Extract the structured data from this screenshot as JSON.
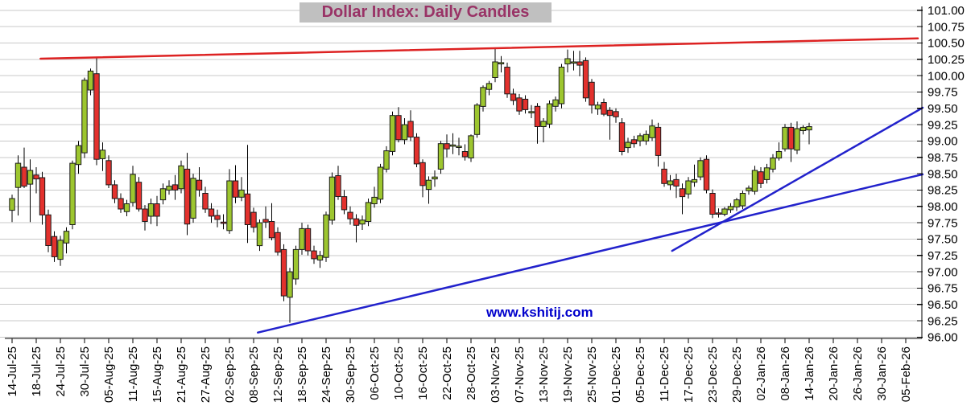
{
  "watermark": "www.kshitij.com",
  "colors": {
    "up": "#9dc62f",
    "down": "#e3312d",
    "body_border": "#1a1a1a",
    "wick": "#000000",
    "grid": "#c8c8c8",
    "axis": "#000000",
    "label": "#000000",
    "title_fg": "#993366",
    "title_bg": "#c0c0c0",
    "watermark_fg": "#0000cc",
    "resistance_line": "#dd2222",
    "support_line": "#2222cc"
  },
  "chart_data": {
    "type": "candlestick",
    "title": "Dollar Index: Daily Candles",
    "ylim": [
      96.0,
      101.0
    ],
    "y_tick_step": 0.25,
    "grid": true,
    "y_axis_side": "right",
    "y_ticks": [
      101.0,
      100.75,
      100.5,
      100.25,
      100.0,
      99.75,
      99.5,
      99.25,
      99.0,
      98.75,
      98.5,
      98.25,
      98.0,
      97.75,
      97.5,
      97.25,
      97.0,
      96.75,
      96.5,
      96.25,
      96.0
    ],
    "x_ticks_every_n_candles": 4,
    "x_tick_labels": [
      "14-Jul-25",
      "18-Jul-25",
      "24-Jul-25",
      "30-Jul-25",
      "05-Aug-25",
      "11-Aug-25",
      "15-Aug-25",
      "21-Aug-25",
      "27-Aug-25",
      "02-Sep-25",
      "08-Sep-25",
      "12-Sep-25",
      "18-Sep-25",
      "24-Sep-25",
      "30-Sep-25",
      "06-Oct-25",
      "10-Oct-25",
      "16-Oct-25",
      "22-Oct-25",
      "28-Oct-25",
      "03-Nov-25",
      "07-Nov-25",
      "13-Nov-25",
      "19-Nov-25",
      "25-Nov-25",
      "01-Dec-25",
      "05-Dec-25",
      "11-Dec-25",
      "17-Dec-25",
      "23-Dec-25",
      "29-Dec-25",
      "02-Jan-26",
      "08-Jan-26",
      "14-Jan-26",
      "20-Jan-26",
      "26-Jan-26",
      "30-Jan-26",
      "05-Feb-26"
    ],
    "candle_fields": [
      "date",
      "open",
      "high",
      "low",
      "close"
    ],
    "candles": [
      [
        "14-Jul-25",
        97.94,
        98.18,
        97.76,
        98.12
      ],
      [
        "15-Jul-25",
        98.29,
        98.78,
        97.86,
        98.66
      ],
      [
        "16-Jul-25",
        98.6,
        98.9,
        98.28,
        98.31
      ],
      [
        "17-Jul-25",
        98.34,
        98.72,
        97.76,
        98.55
      ],
      [
        "18-Jul-25",
        98.48,
        98.6,
        98.2,
        98.42
      ],
      [
        "21-Jul-25",
        98.44,
        98.53,
        97.72,
        97.87
      ],
      [
        "22-Jul-25",
        97.87,
        97.95,
        97.3,
        97.4
      ],
      [
        "23-Jul-25",
        97.54,
        97.62,
        97.15,
        97.23
      ],
      [
        "24-Jul-25",
        97.19,
        97.55,
        97.09,
        97.48
      ],
      [
        "25-Jul-25",
        97.44,
        97.68,
        97.28,
        97.62
      ],
      [
        "28-Jul-25",
        97.72,
        98.7,
        97.65,
        98.66
      ],
      [
        "29-Jul-25",
        98.64,
        99.0,
        98.5,
        98.93
      ],
      [
        "30-Jul-25",
        98.82,
        99.97,
        98.74,
        99.93
      ],
      [
        "31-Jul-25",
        99.78,
        100.11,
        99.7,
        100.07
      ],
      [
        "01-Aug-25",
        100.03,
        100.27,
        98.63,
        98.72
      ],
      [
        "04-Aug-25",
        98.73,
        98.98,
        98.54,
        98.86
      ],
      [
        "05-Aug-25",
        98.7,
        98.78,
        98.28,
        98.33
      ],
      [
        "06-Aug-25",
        98.33,
        98.4,
        98.05,
        98.12
      ],
      [
        "07-Aug-25",
        98.12,
        98.2,
        97.9,
        97.96
      ],
      [
        "08-Aug-25",
        97.92,
        98.1,
        97.85,
        98.04
      ],
      [
        "11-Aug-25",
        98.06,
        98.62,
        98.0,
        98.49
      ],
      [
        "12-Aug-25",
        98.37,
        98.45,
        97.92,
        97.96
      ],
      [
        "13-Aug-25",
        97.96,
        98.02,
        97.63,
        97.77
      ],
      [
        "14-Aug-25",
        97.85,
        98.12,
        97.73,
        98.04
      ],
      [
        "15-Aug-25",
        98.04,
        98.16,
        97.7,
        97.85
      ],
      [
        "18-Aug-25",
        98.1,
        98.35,
        98.03,
        98.27
      ],
      [
        "19-Aug-25",
        98.25,
        98.4,
        98.18,
        98.31
      ],
      [
        "20-Aug-25",
        98.33,
        98.48,
        98.1,
        98.25
      ],
      [
        "21-Aug-25",
        98.27,
        98.7,
        98.2,
        98.62
      ],
      [
        "22-Aug-25",
        98.57,
        98.82,
        97.56,
        97.73
      ],
      [
        "25-Aug-25",
        97.82,
        98.5,
        97.75,
        98.43
      ],
      [
        "26-Aug-25",
        98.4,
        98.6,
        98.15,
        98.25
      ],
      [
        "27-Aug-25",
        98.2,
        98.3,
        97.9,
        97.96
      ],
      [
        "28-Aug-25",
        97.96,
        98.05,
        97.75,
        97.85
      ],
      [
        "29-Aug-25",
        97.86,
        97.95,
        97.68,
        97.8
      ],
      [
        "01-Sep-25",
        97.76,
        97.88,
        97.65,
        97.74
      ],
      [
        "02-Sep-25",
        97.63,
        98.57,
        97.58,
        98.39
      ],
      [
        "03-Sep-25",
        98.39,
        98.63,
        98.05,
        98.14
      ],
      [
        "04-Sep-25",
        98.14,
        98.45,
        98.08,
        98.25
      ],
      [
        "05-Sep-25",
        98.19,
        98.94,
        97.44,
        97.72
      ],
      [
        "08-Sep-25",
        97.91,
        97.98,
        97.6,
        97.68
      ],
      [
        "09-Sep-25",
        97.4,
        97.8,
        97.32,
        97.75
      ],
      [
        "10-Sep-25",
        97.8,
        98.0,
        97.67,
        97.76
      ],
      [
        "11-Sep-25",
        97.77,
        98.05,
        97.48,
        97.52
      ],
      [
        "12-Sep-25",
        97.6,
        97.68,
        97.25,
        97.3
      ],
      [
        "15-Sep-25",
        97.34,
        97.42,
        96.55,
        96.63
      ],
      [
        "16-Sep-25",
        96.61,
        97.06,
        96.22,
        97.0
      ],
      [
        "17-Sep-25",
        96.89,
        97.4,
        96.8,
        97.34
      ],
      [
        "18-Sep-25",
        97.34,
        97.75,
        97.26,
        97.66
      ],
      [
        "19-Sep-25",
        97.66,
        97.72,
        97.25,
        97.32
      ],
      [
        "22-Sep-25",
        97.32,
        97.4,
        97.12,
        97.2
      ],
      [
        "23-Sep-25",
        97.18,
        97.32,
        97.06,
        97.25
      ],
      [
        "24-Sep-25",
        97.22,
        97.92,
        97.15,
        97.87
      ],
      [
        "25-Sep-25",
        97.79,
        98.52,
        97.72,
        98.45
      ],
      [
        "26-Sep-25",
        98.47,
        98.62,
        98.1,
        98.15
      ],
      [
        "29-Sep-25",
        98.15,
        98.25,
        97.88,
        97.95
      ],
      [
        "30-Sep-25",
        97.91,
        98.0,
        97.72,
        97.81
      ],
      [
        "01-Oct-25",
        97.81,
        97.88,
        97.45,
        97.71
      ],
      [
        "02-Oct-25",
        97.73,
        97.86,
        97.64,
        97.79
      ],
      [
        "03-Oct-25",
        97.77,
        98.12,
        97.7,
        98.06
      ],
      [
        "06-Oct-25",
        98.04,
        98.3,
        97.98,
        98.14
      ],
      [
        "07-Oct-25",
        98.11,
        98.65,
        98.05,
        98.6
      ],
      [
        "08-Oct-25",
        98.57,
        98.92,
        98.52,
        98.85
      ],
      [
        "09-Oct-25",
        98.84,
        99.45,
        98.78,
        99.39
      ],
      [
        "10-Oct-25",
        99.39,
        99.52,
        98.98,
        99.02
      ],
      [
        "13-Oct-25",
        99.02,
        99.35,
        98.95,
        99.25
      ],
      [
        "14-Oct-25",
        99.3,
        99.47,
        99.0,
        99.06
      ],
      [
        "15-Oct-25",
        99.06,
        99.12,
        98.6,
        98.65
      ],
      [
        "16-Oct-25",
        98.67,
        98.72,
        98.14,
        98.32
      ],
      [
        "17-Oct-25",
        98.26,
        98.46,
        98.04,
        98.4
      ],
      [
        "20-Oct-25",
        98.42,
        98.55,
        98.3,
        98.45
      ],
      [
        "21-Oct-25",
        98.57,
        99.0,
        98.5,
        98.96
      ],
      [
        "22-Oct-25",
        98.96,
        99.1,
        98.75,
        98.88
      ],
      [
        "23-Oct-25",
        98.94,
        99.12,
        98.8,
        98.94
      ],
      [
        "24-Oct-25",
        98.92,
        99.05,
        98.78,
        98.92
      ],
      [
        "27-Oct-25",
        98.84,
        98.95,
        98.7,
        98.76
      ],
      [
        "28-Oct-25",
        98.74,
        99.1,
        98.68,
        99.08
      ],
      [
        "29-Oct-25",
        99.1,
        99.58,
        99.05,
        99.55
      ],
      [
        "30-Oct-25",
        99.53,
        99.85,
        99.45,
        99.82
      ],
      [
        "31-Oct-25",
        99.79,
        99.92,
        99.7,
        99.88
      ],
      [
        "03-Nov-25",
        99.97,
        100.42,
        99.9,
        100.21
      ],
      [
        "04-Nov-25",
        100.2,
        100.3,
        100.05,
        100.2
      ],
      [
        "05-Nov-25",
        100.13,
        100.2,
        99.66,
        99.72
      ],
      [
        "06-Nov-25",
        99.72,
        99.8,
        99.55,
        99.62
      ],
      [
        "07-Nov-25",
        99.66,
        99.72,
        99.4,
        99.46
      ],
      [
        "10-Nov-25",
        99.64,
        99.7,
        99.42,
        99.48
      ],
      [
        "11-Nov-25",
        99.45,
        99.55,
        99.35,
        99.45
      ],
      [
        "12-Nov-25",
        99.53,
        99.58,
        98.96,
        99.22
      ],
      [
        "13-Nov-25",
        99.22,
        99.35,
        98.98,
        99.3
      ],
      [
        "14-Nov-25",
        99.26,
        99.62,
        99.2,
        99.57
      ],
      [
        "17-Nov-25",
        99.53,
        99.68,
        99.45,
        99.63
      ],
      [
        "18-Nov-25",
        99.57,
        100.18,
        99.5,
        100.13
      ],
      [
        "19-Nov-25",
        100.18,
        100.4,
        100.05,
        100.26
      ],
      [
        "20-Nov-25",
        100.2,
        100.38,
        100.08,
        100.21
      ],
      [
        "21-Nov-25",
        100.21,
        100.38,
        99.99,
        100.16
      ],
      [
        "24-Nov-25",
        100.23,
        100.28,
        99.6,
        99.66
      ],
      [
        "25-Nov-25",
        99.9,
        99.95,
        99.42,
        99.55
      ],
      [
        "26-Nov-25",
        99.49,
        99.6,
        99.4,
        99.55
      ],
      [
        "27-Nov-25",
        99.59,
        99.65,
        99.38,
        99.41
      ],
      [
        "28-Nov-25",
        99.47,
        99.52,
        99.02,
        99.39
      ],
      [
        "01-Dec-25",
        99.45,
        99.5,
        99.28,
        99.37
      ],
      [
        "02-Dec-25",
        99.28,
        99.35,
        98.78,
        98.84
      ],
      [
        "03-Dec-25",
        98.9,
        99.05,
        98.82,
        98.98
      ],
      [
        "04-Dec-25",
        99.02,
        99.08,
        98.9,
        98.96
      ],
      [
        "05-Dec-25",
        99.0,
        99.12,
        98.92,
        99.08
      ],
      [
        "08-Dec-25",
        99.0,
        99.16,
        98.94,
        99.1
      ],
      [
        "09-Dec-25",
        99.05,
        99.33,
        99.0,
        99.23
      ],
      [
        "10-Dec-25",
        99.21,
        99.28,
        98.61,
        98.78
      ],
      [
        "11-Dec-25",
        98.57,
        98.68,
        98.3,
        98.35
      ],
      [
        "12-Dec-25",
        98.33,
        98.48,
        98.25,
        98.39
      ],
      [
        "15-Dec-25",
        98.41,
        98.5,
        98.13,
        98.31
      ],
      [
        "16-Dec-25",
        98.27,
        98.35,
        97.88,
        98.15
      ],
      [
        "17-Dec-25",
        98.19,
        98.45,
        98.12,
        98.39
      ],
      [
        "18-Dec-25",
        98.37,
        98.64,
        98.3,
        98.41
      ],
      [
        "19-Dec-25",
        98.45,
        98.75,
        98.4,
        98.7
      ],
      [
        "22-Dec-25",
        98.72,
        98.78,
        98.2,
        98.25
      ],
      [
        "23-Dec-25",
        98.2,
        98.26,
        97.82,
        97.88
      ],
      [
        "24-Dec-25",
        97.9,
        97.97,
        97.83,
        97.89
      ],
      [
        "25-Dec-25",
        97.88,
        97.99,
        97.85,
        97.96
      ],
      [
        "26-Dec-25",
        97.95,
        98.05,
        97.9,
        98.0
      ],
      [
        "29-Dec-25",
        97.99,
        98.13,
        97.93,
        98.1
      ],
      [
        "30-Dec-25",
        98.01,
        98.24,
        97.96,
        98.2
      ],
      [
        "31-Dec-25",
        98.24,
        98.32,
        98.18,
        98.28
      ],
      [
        "01-Jan-26",
        98.23,
        98.62,
        98.18,
        98.55
      ],
      [
        "02-Jan-26",
        98.53,
        98.6,
        98.28,
        98.35
      ],
      [
        "05-Jan-26",
        98.41,
        98.65,
        98.35,
        98.59
      ],
      [
        "06-Jan-26",
        98.57,
        98.8,
        98.52,
        98.74
      ],
      [
        "07-Jan-26",
        98.74,
        98.98,
        98.7,
        98.84
      ],
      [
        "08-Jan-26",
        98.88,
        99.26,
        98.84,
        99.21
      ],
      [
        "09-Jan-26",
        99.21,
        99.28,
        98.68,
        98.88
      ],
      [
        "12-Jan-26",
        98.86,
        99.3,
        98.8,
        99.19
      ],
      [
        "13-Jan-26",
        99.16,
        99.24,
        99.1,
        99.21
      ],
      [
        "14-Jan-26",
        99.17,
        99.28,
        98.95,
        99.22
      ]
    ],
    "trendlines": [
      {
        "name": "resistance-trendline",
        "color": "#dd2222",
        "width": 2.5,
        "x1_slot": 4.7,
        "y1_price": 100.26,
        "x2_slot": 150.0,
        "y2_price": 100.57
      },
      {
        "name": "long-support-trendline",
        "color": "#2222cc",
        "width": 2.5,
        "x1_slot": 40.7,
        "y1_price": 96.07,
        "x2_slot": 150.8,
        "y2_price": 98.49
      },
      {
        "name": "steep-support-trendline",
        "color": "#2222cc",
        "width": 2.5,
        "x1_slot": 109.3,
        "y1_price": 97.32,
        "x2_slot": 150.8,
        "y2_price": 99.51
      }
    ],
    "annotations": [
      {
        "text": "www.kshitij.com",
        "color": "#0000cc",
        "position": "bottom-center"
      }
    ],
    "legend": null
  }
}
